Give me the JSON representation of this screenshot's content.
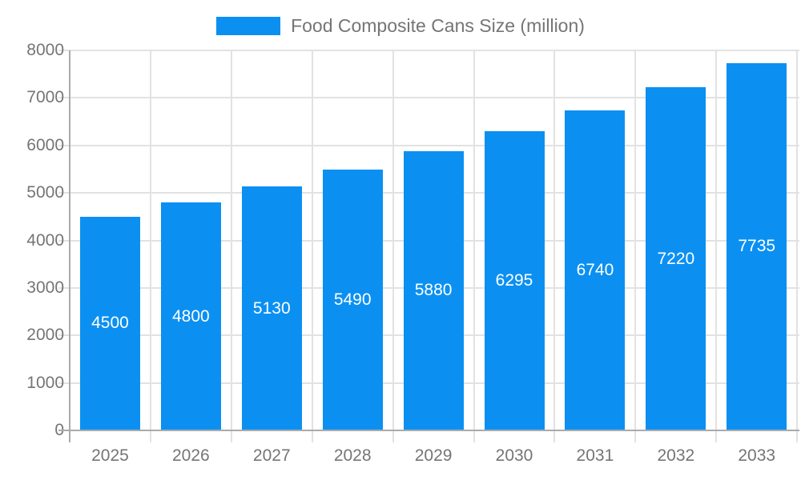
{
  "chart_data": {
    "type": "bar",
    "title": "Food Composite Cans Size (million)",
    "legend": {
      "label": "Food Composite Cans Size (million)",
      "position": "top"
    },
    "categories": [
      "2025",
      "2026",
      "2027",
      "2028",
      "2029",
      "2030",
      "2031",
      "2032",
      "2033"
    ],
    "series": [
      {
        "name": "Food Composite Cans Size (million)",
        "values": [
          4500,
          4800,
          5130,
          5490,
          5880,
          6295,
          6740,
          7220,
          7735
        ]
      }
    ],
    "data_labels": [
      "4500",
      "4800",
      "5130",
      "5490",
      "5880",
      "6295",
      "6740",
      "7220",
      "7735"
    ],
    "xlabel": "",
    "ylabel": "",
    "ylim": [
      0,
      8000
    ],
    "yticks": [
      0,
      1000,
      2000,
      3000,
      4000,
      5000,
      6000,
      7000,
      8000
    ],
    "grid": true,
    "colors": {
      "bar": "#0b90f2",
      "bar_value_text": "#ffffff",
      "axis_text": "#757575",
      "grid_line": "#e2e2e2",
      "axis_line": "#aaaaaa"
    }
  }
}
